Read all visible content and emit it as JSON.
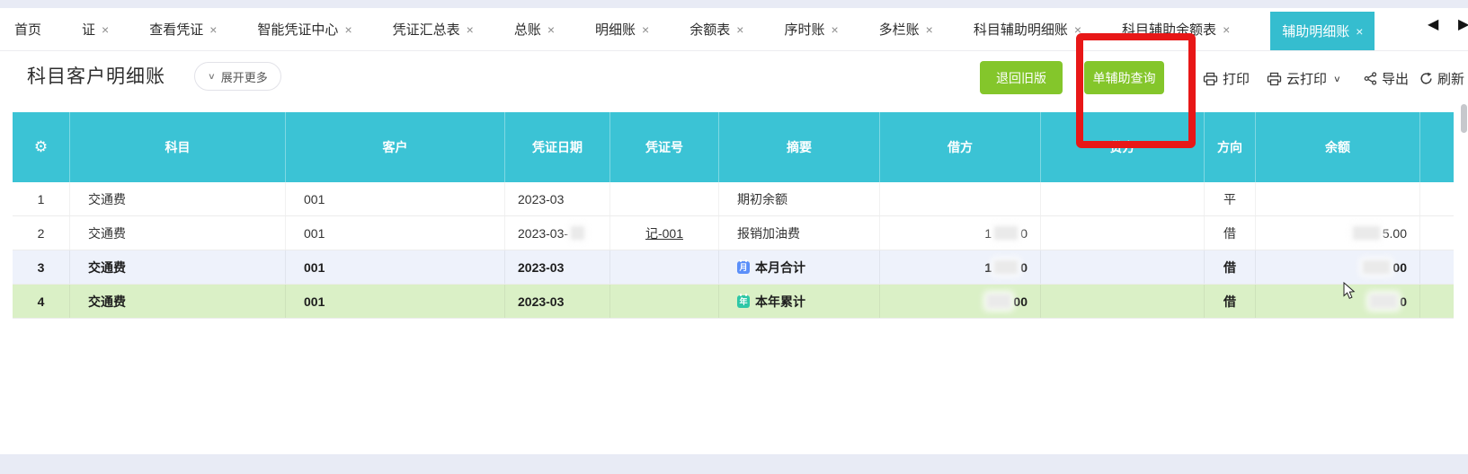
{
  "tabbar": {
    "tabs": [
      {
        "label": "首页",
        "closable": false,
        "active": false
      },
      {
        "label": "证",
        "closable": true,
        "active": false
      },
      {
        "label": "查看凭证",
        "closable": true,
        "active": false
      },
      {
        "label": "智能凭证中心",
        "closable": true,
        "active": false
      },
      {
        "label": "凭证汇总表",
        "closable": true,
        "active": false
      },
      {
        "label": "总账",
        "closable": true,
        "active": false
      },
      {
        "label": "明细账",
        "closable": true,
        "active": false
      },
      {
        "label": "余额表",
        "closable": true,
        "active": false
      },
      {
        "label": "序时账",
        "closable": true,
        "active": false
      },
      {
        "label": "多栏账",
        "closable": true,
        "active": false
      },
      {
        "label": "科目辅助明细账",
        "closable": true,
        "active": false
      },
      {
        "label": "科目辅助余额表",
        "closable": true,
        "active": false
      },
      {
        "label": "辅助明细账",
        "closable": true,
        "active": true
      }
    ],
    "scroll_left_icon": "◀",
    "scroll_right_icon": "▶"
  },
  "toolbar": {
    "title": "科目客户明细账",
    "expand_more_label": "展开更多",
    "expand_chevron": "∨",
    "buttons": {
      "back_old_version": "退回旧版",
      "single_aux_query": "单辅助查询",
      "print": "打印",
      "cloud_print": "云打印",
      "cloud_print_chevron": "∨",
      "export": "导出",
      "refresh": "刷新"
    }
  },
  "annotation": {
    "type": "red-highlight-box",
    "color": "#e81717",
    "highlights": "单辅助查询 button and 贷方 column header"
  },
  "table": {
    "gear_icon": "⚙",
    "headers": [
      "科目",
      "客户",
      "凭证日期",
      "凭证号",
      "摘要",
      "借方",
      "贷方",
      "方向",
      "余额"
    ],
    "rows": [
      {
        "num": "1",
        "subject": "交通费",
        "customer": "001",
        "date": {
          "text": "2023-03",
          "redacted": false
        },
        "voucher": {
          "text": "",
          "link": false
        },
        "summary": {
          "icon": null,
          "text": "期初余额"
        },
        "debit": {
          "pre": "",
          "redacted": false,
          "post": ""
        },
        "credit": "",
        "direction": "平",
        "balance": {
          "pre": "",
          "redacted": false,
          "post": "",
          "cursor": false
        },
        "bold": false,
        "highlight": ""
      },
      {
        "num": "2",
        "subject": "交通费",
        "customer": "001",
        "date": {
          "text": "2023-03-",
          "redacted": true
        },
        "voucher": {
          "text": "记-001",
          "link": true
        },
        "summary": {
          "icon": null,
          "text": "报销加油费"
        },
        "debit": {
          "pre": "1",
          "redacted": true,
          "post": "0"
        },
        "credit": "",
        "direction": "借",
        "balance": {
          "pre": "",
          "redacted": true,
          "post": "5.00",
          "cursor": false
        },
        "bold": false,
        "highlight": ""
      },
      {
        "num": "3",
        "subject": "交通费",
        "customer": "001",
        "date": {
          "text": "2023-03",
          "redacted": false
        },
        "voucher": {
          "text": "",
          "link": false
        },
        "summary": {
          "icon": {
            "glyph": "月",
            "color": "#5b8ff9",
            "name": "calendar-month-icon"
          },
          "text": "本月合计"
        },
        "debit": {
          "pre": "1",
          "redacted": true,
          "post": "0"
        },
        "credit": "",
        "direction": "借",
        "balance": {
          "pre": "",
          "redacted": true,
          "post": "00",
          "cursor": false
        },
        "bold": true,
        "highlight": "blue"
      },
      {
        "num": "4",
        "subject": "交通费",
        "customer": "001",
        "date": {
          "text": "2023-03",
          "redacted": false
        },
        "voucher": {
          "text": "",
          "link": false
        },
        "summary": {
          "icon": {
            "glyph": "年",
            "color": "#2ec7a6",
            "name": "calendar-year-icon"
          },
          "text": "本年累计"
        },
        "debit": {
          "pre": "",
          "redacted": true,
          "post": "00"
        },
        "credit": "",
        "direction": "借",
        "balance": {
          "pre": "",
          "redacted": true,
          "post": "0",
          "cursor": true
        },
        "bold": true,
        "highlight": "green"
      }
    ]
  },
  "colors": {
    "accent_cyan": "#3bc3d5",
    "button_green": "#84c62b",
    "annotation_red": "#e81717",
    "row_highlight_blue": "#eef2fb",
    "row_highlight_green": "#daf0c6",
    "strip": "#e8ebf5"
  }
}
